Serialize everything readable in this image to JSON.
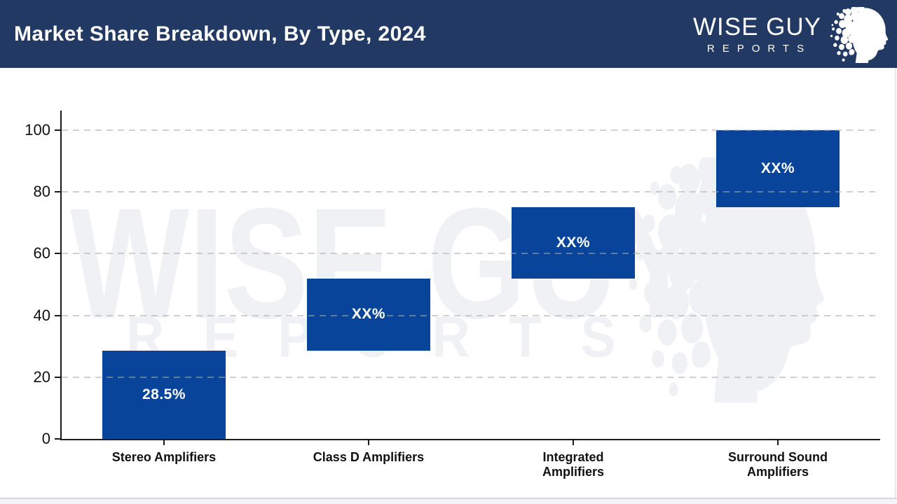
{
  "header": {
    "title": "Market Share Breakdown, By Type, 2024",
    "brand": {
      "name": "WISE GUY",
      "tagline": "REPORTS"
    }
  },
  "watermark": {
    "line1": "WISE GUY",
    "line2": "REPORTS"
  },
  "colors": {
    "header_bg": "#213963",
    "bar": "#08459a",
    "bar_label": "#ffffff",
    "axis": "#1a1a1a",
    "tick_label": "#111111",
    "grid": "#d3d3d3",
    "watermark": "#eff1f4",
    "footer_bg": "#f5f5f7",
    "footer_line": "#d8d8da"
  },
  "chart_data": {
    "type": "bar",
    "subtype": "waterfall",
    "title": "Market Share Breakdown, By Type, 2024",
    "categories": [
      "Stereo Amplifiers",
      "Class D Amplifiers",
      "Integrated Amplifiers",
      "Surround Sound Amplifiers"
    ],
    "category_lines": [
      [
        "Stereo Amplifiers"
      ],
      [
        "Class D Amplifiers"
      ],
      [
        "Integrated",
        "Amplifiers"
      ],
      [
        "Surround Sound",
        "Amplifiers"
      ]
    ],
    "series": [
      {
        "name": "Market share (%)",
        "segments": [
          {
            "category": "Stereo Amplifiers",
            "start": 0,
            "end": 28.5,
            "label": "28.5%"
          },
          {
            "category": "Class D Amplifiers",
            "start": 28.5,
            "end": 52,
            "label": "XX%"
          },
          {
            "category": "Integrated Amplifiers",
            "start": 52,
            "end": 75,
            "label": "XX%"
          },
          {
            "category": "Surround Sound Amplifiers",
            "start": 75,
            "end": 100,
            "label": "XX%"
          }
        ]
      }
    ],
    "xlabel": "",
    "ylabel": "",
    "ylim": [
      0,
      100
    ],
    "yticks": [
      0,
      20,
      40,
      60,
      80,
      100
    ],
    "grid": "horizontal-dashed",
    "legend": "none"
  }
}
